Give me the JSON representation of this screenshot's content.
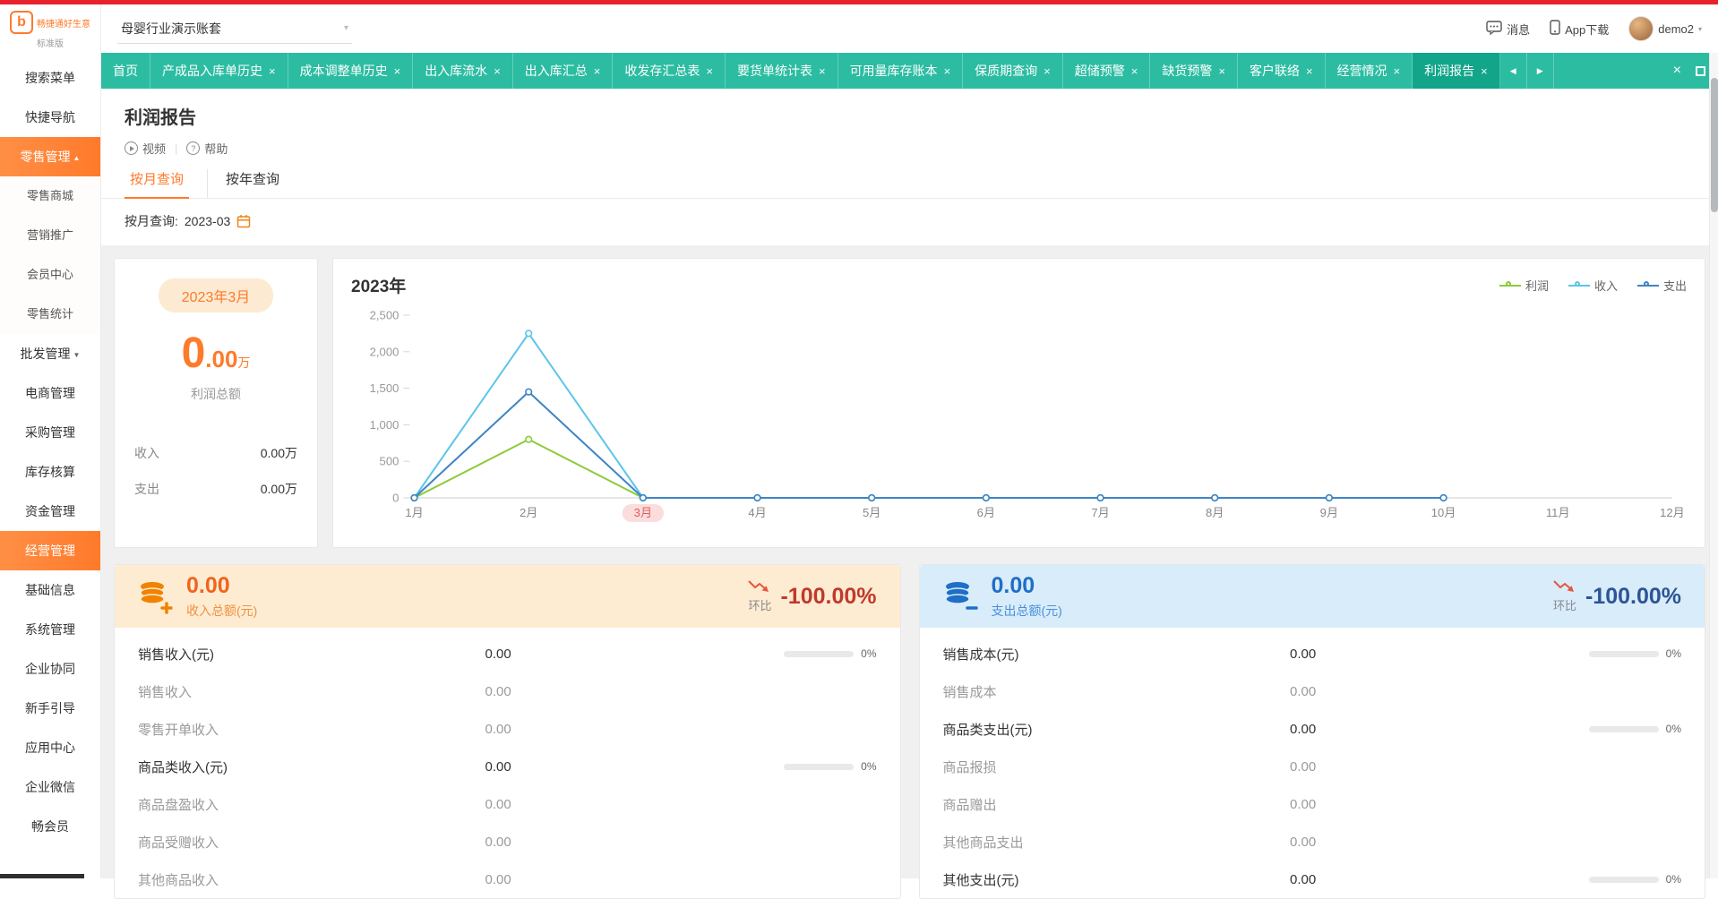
{
  "colors": {
    "topbar_strip": "#e8222d",
    "accent_orange": "#ff7a2b",
    "tabbar_teal": "#2cbca2",
    "tab_active_teal": "#12a58a",
    "income_header_bg": "#fdecd2",
    "income_value": "#f0641e",
    "income_label": "#f0913f",
    "income_percent": "#c0392b",
    "expense_header_bg": "#d8ecfa",
    "expense_value": "#1f6ec7",
    "expense_label": "#4a90d9",
    "expense_percent": "#2d5496",
    "trend_icon": "#e8553d",
    "highlight_month_bg": "#fbdddd",
    "highlight_month_text": "#e05c5c"
  },
  "logo": {
    "brand": "畅捷通好生意",
    "edition": "标准版"
  },
  "topbar": {
    "account": "母婴行业演示账套",
    "messages_label": "消息",
    "app_download_label": "App下载",
    "username": "demo2"
  },
  "icons": {
    "close": "×",
    "caret_up": "▲",
    "caret_down": "▼",
    "chevron_down": "▾",
    "prev": "◀",
    "next": "▶",
    "help": "?"
  },
  "sidebar": {
    "items": [
      {
        "label": "搜索菜单"
      },
      {
        "label": "快捷导航"
      },
      {
        "label": "零售管理",
        "active": true,
        "expanded": true
      },
      {
        "label": "零售商城",
        "sub": true
      },
      {
        "label": "营销推广",
        "sub": true
      },
      {
        "label": "会员中心",
        "sub": true
      },
      {
        "label": "零售统计",
        "sub": true
      },
      {
        "label": "批发管理",
        "expandable": true
      },
      {
        "label": "电商管理"
      },
      {
        "label": "采购管理"
      },
      {
        "label": "库存核算"
      },
      {
        "label": "资金管理"
      },
      {
        "label": "经营管理",
        "active": true
      },
      {
        "label": "基础信息"
      },
      {
        "label": "系统管理"
      },
      {
        "label": "企业协同"
      },
      {
        "label": "新手引导"
      },
      {
        "label": "应用中心"
      },
      {
        "label": "企业微信"
      },
      {
        "label": "畅会员"
      }
    ]
  },
  "tabs": {
    "items": [
      {
        "label": "首页",
        "closable": false
      },
      {
        "label": "产成品入库单历史",
        "closable": true
      },
      {
        "label": "成本调整单历史",
        "closable": true
      },
      {
        "label": "出入库流水",
        "closable": true
      },
      {
        "label": "出入库汇总",
        "closable": true
      },
      {
        "label": "收发存汇总表",
        "closable": true
      },
      {
        "label": "要货单统计表",
        "closable": true
      },
      {
        "label": "可用量库存账本",
        "closable": true
      },
      {
        "label": "保质期查询",
        "closable": true
      },
      {
        "label": "超储预警",
        "closable": true
      },
      {
        "label": "缺货预警",
        "closable": true
      },
      {
        "label": "客户联络",
        "closable": true
      },
      {
        "label": "经营情况",
        "closable": true
      },
      {
        "label": "利润报告",
        "closable": true,
        "active": true
      }
    ]
  },
  "page": {
    "title": "利润报告",
    "video_label": "视频",
    "help_label": "帮助",
    "query_tabs": [
      {
        "label": "按月查询",
        "active": true
      },
      {
        "label": "按年查询",
        "active": false
      }
    ],
    "filter_label": "按月查询:",
    "filter_value": "2023-03"
  },
  "summary": {
    "period": "2023年3月",
    "value_int": "0",
    "value_dec": ".00",
    "unit": "万",
    "caption": "利润总额",
    "rows": [
      {
        "label": "收入",
        "value": "0.00万"
      },
      {
        "label": "支出",
        "value": "0.00万"
      }
    ]
  },
  "chart_data": {
    "type": "line",
    "title": "2023年",
    "x": [
      "1月",
      "2月",
      "3月",
      "4月",
      "5月",
      "6月",
      "7月",
      "8月",
      "9月",
      "10月",
      "11月",
      "12月"
    ],
    "xlabel": "",
    "ylabel": "",
    "ylim": [
      0,
      2500
    ],
    "yticks": [
      {
        "value": 0,
        "label": "0"
      },
      {
        "value": 500,
        "label": "500"
      },
      {
        "value": 1000,
        "label": "1,000"
      },
      {
        "value": 1500,
        "label": "1,500"
      },
      {
        "value": 2000,
        "label": "2,000"
      },
      {
        "value": 2500,
        "label": "2,500"
      }
    ],
    "grid": false,
    "legend_position": "top-right",
    "highlight_x": "3月",
    "unit_note": "values in 万, Jan–Oct plotted, Nov–Dec no data",
    "series": [
      {
        "name": "利润",
        "color": "#8ccb3a",
        "values": [
          0,
          800,
          0,
          0,
          0,
          0,
          0,
          0,
          0,
          0
        ]
      },
      {
        "name": "收入",
        "color": "#5bc6e8",
        "values": [
          0,
          2250,
          0,
          0,
          0,
          0,
          0,
          0,
          0,
          0
        ]
      },
      {
        "name": "支出",
        "color": "#3d85c6",
        "values": [
          0,
          1450,
          0,
          0,
          0,
          0,
          0,
          0,
          0,
          0
        ]
      }
    ]
  },
  "income_card": {
    "value": "0.00",
    "label": "收入总额(元)",
    "trend_label": "环比",
    "trend_value": "-100.00%",
    "rows": [
      {
        "label": "销售收入(元)",
        "value": "0.00",
        "category": true,
        "progress": "0%"
      },
      {
        "label": "销售收入",
        "value": "0.00",
        "category": false
      },
      {
        "label": "零售开单收入",
        "value": "0.00",
        "category": false
      },
      {
        "label": "商品类收入(元)",
        "value": "0.00",
        "category": true,
        "progress": "0%"
      },
      {
        "label": "商品盘盈收入",
        "value": "0.00",
        "category": false
      },
      {
        "label": "商品受赠收入",
        "value": "0.00",
        "category": false
      },
      {
        "label": "其他商品收入",
        "value": "0.00",
        "category": false
      }
    ]
  },
  "expense_card": {
    "value": "0.00",
    "label": "支出总额(元)",
    "trend_label": "环比",
    "trend_value": "-100.00%",
    "rows": [
      {
        "label": "销售成本(元)",
        "value": "0.00",
        "category": true,
        "progress": "0%"
      },
      {
        "label": "销售成本",
        "value": "0.00",
        "category": false
      },
      {
        "label": "商品类支出(元)",
        "value": "0.00",
        "category": true,
        "progress": "0%"
      },
      {
        "label": "商品报损",
        "value": "0.00",
        "category": false
      },
      {
        "label": "商品赠出",
        "value": "0.00",
        "category": false
      },
      {
        "label": "其他商品支出",
        "value": "0.00",
        "category": false
      },
      {
        "label": "其他支出(元)",
        "value": "0.00",
        "category": true,
        "progress": "0%"
      }
    ]
  }
}
